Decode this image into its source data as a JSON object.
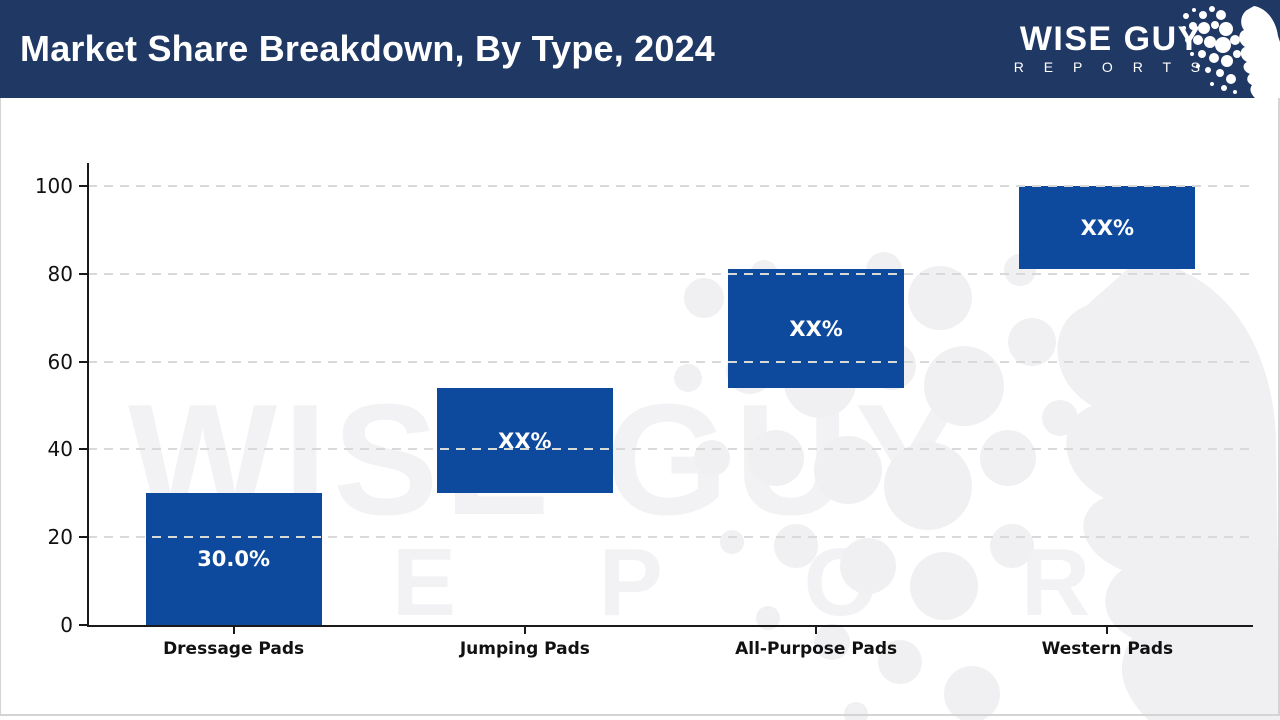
{
  "header": {
    "title": "Market Share Breakdown, By Type, 2024",
    "background_color": "#1f3864",
    "logo": {
      "line1": "WISE GUY",
      "line2": "R E P O R T S"
    }
  },
  "watermark": {
    "line1": "WISE GUY",
    "line2": "R E P O R T S"
  },
  "chart_data": {
    "type": "bar",
    "subtype": "waterfall",
    "title": "Market Share Breakdown, By Type, 2024",
    "xlabel": "",
    "ylabel": "",
    "categories": [
      "Dressage Pads",
      "Jumping Pads",
      "All-Purpose Pads",
      "Western Pads"
    ],
    "segments": [
      {
        "category": "Dressage Pads",
        "start": 0,
        "end": 30,
        "label": "30.0%"
      },
      {
        "category": "Jumping Pads",
        "start": 30,
        "end": 54,
        "label": "XX%"
      },
      {
        "category": "All-Purpose Pads",
        "start": 54,
        "end": 81,
        "label": "XX%"
      },
      {
        "category": "Western Pads",
        "start": 81,
        "end": 100,
        "label": "XX%"
      }
    ],
    "values_shown": [
      "30.0%",
      "XX%",
      "XX%",
      "XX%"
    ],
    "yticks": [
      0,
      20,
      40,
      60,
      80,
      100
    ],
    "ylim": [
      0,
      105
    ],
    "grid": "dashed horizontal",
    "legend": "none",
    "bar_color": "#0d4a9e"
  }
}
